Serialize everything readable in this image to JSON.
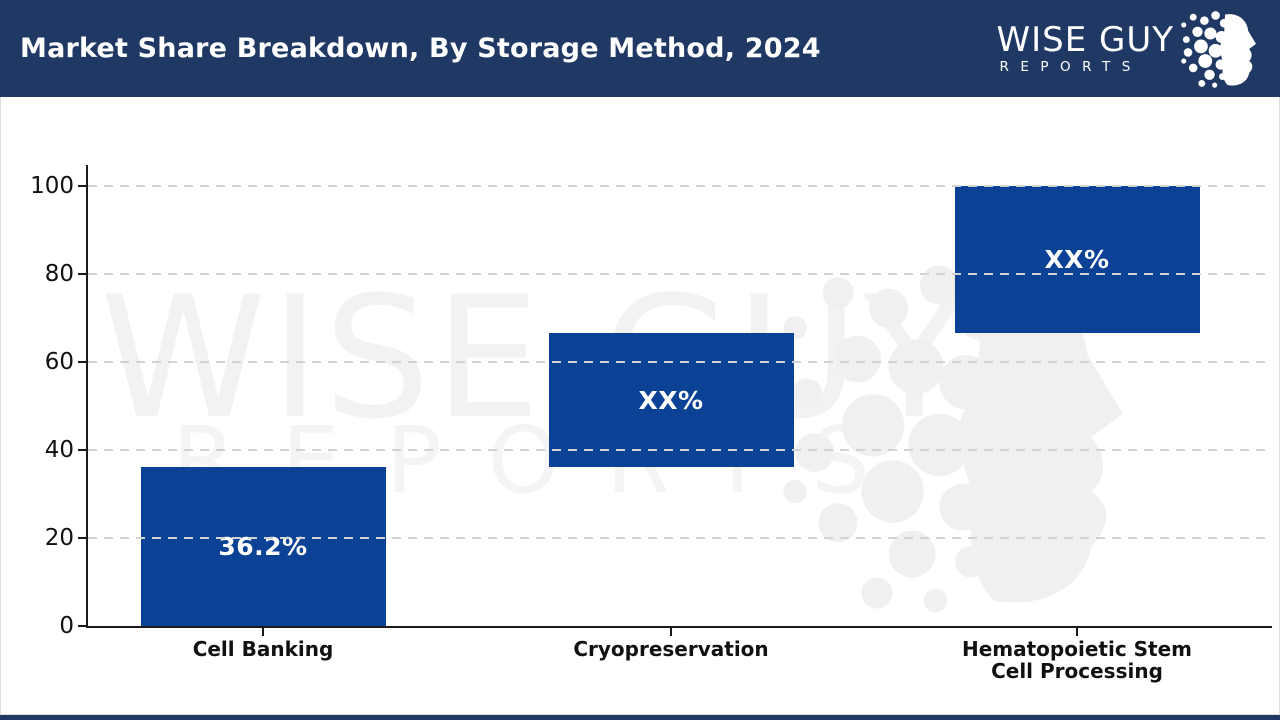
{
  "header": {
    "title": "Market Share Breakdown, By Storage Method, 2024"
  },
  "logo": {
    "wordmark": "WISE GUY",
    "subtext": "REPORTS"
  },
  "watermark": {
    "line1": "WISE GUY",
    "line2": "REPORTS"
  },
  "colors": {
    "header_bg": "#1f3864",
    "footer_bg": "#1f3864",
    "bar": "#0b4296",
    "axis": "#1a1a1a",
    "grid": "#d2d2d2",
    "bar_label_text": "#ffffff",
    "tick_text": "#111111",
    "watermark": "#f2f2f4"
  },
  "chart_data": {
    "type": "bar",
    "subtype": "floating-waterfall",
    "title": "Market Share Breakdown, By Storage Method, 2024",
    "categories": [
      "Cell Banking",
      "Cryopreservation",
      "Hematopoietic Stem\nCell Processing"
    ],
    "segments": [
      {
        "category": "Cell Banking",
        "start": 0,
        "end": 36.2,
        "label": "36.2%"
      },
      {
        "category": "Cryopreservation",
        "start": 36.2,
        "end": 66.5,
        "label": "XX%"
      },
      {
        "category": "Hematopoietic Stem Cell Processing",
        "start": 66.5,
        "end": 100,
        "label": "XX%"
      }
    ],
    "xlabel": "",
    "ylabel": "",
    "ylim": [
      0,
      100
    ],
    "yticks": [
      0,
      20,
      40,
      60,
      80,
      100
    ],
    "grid": "horizontal-dashed",
    "legend": "none"
  }
}
